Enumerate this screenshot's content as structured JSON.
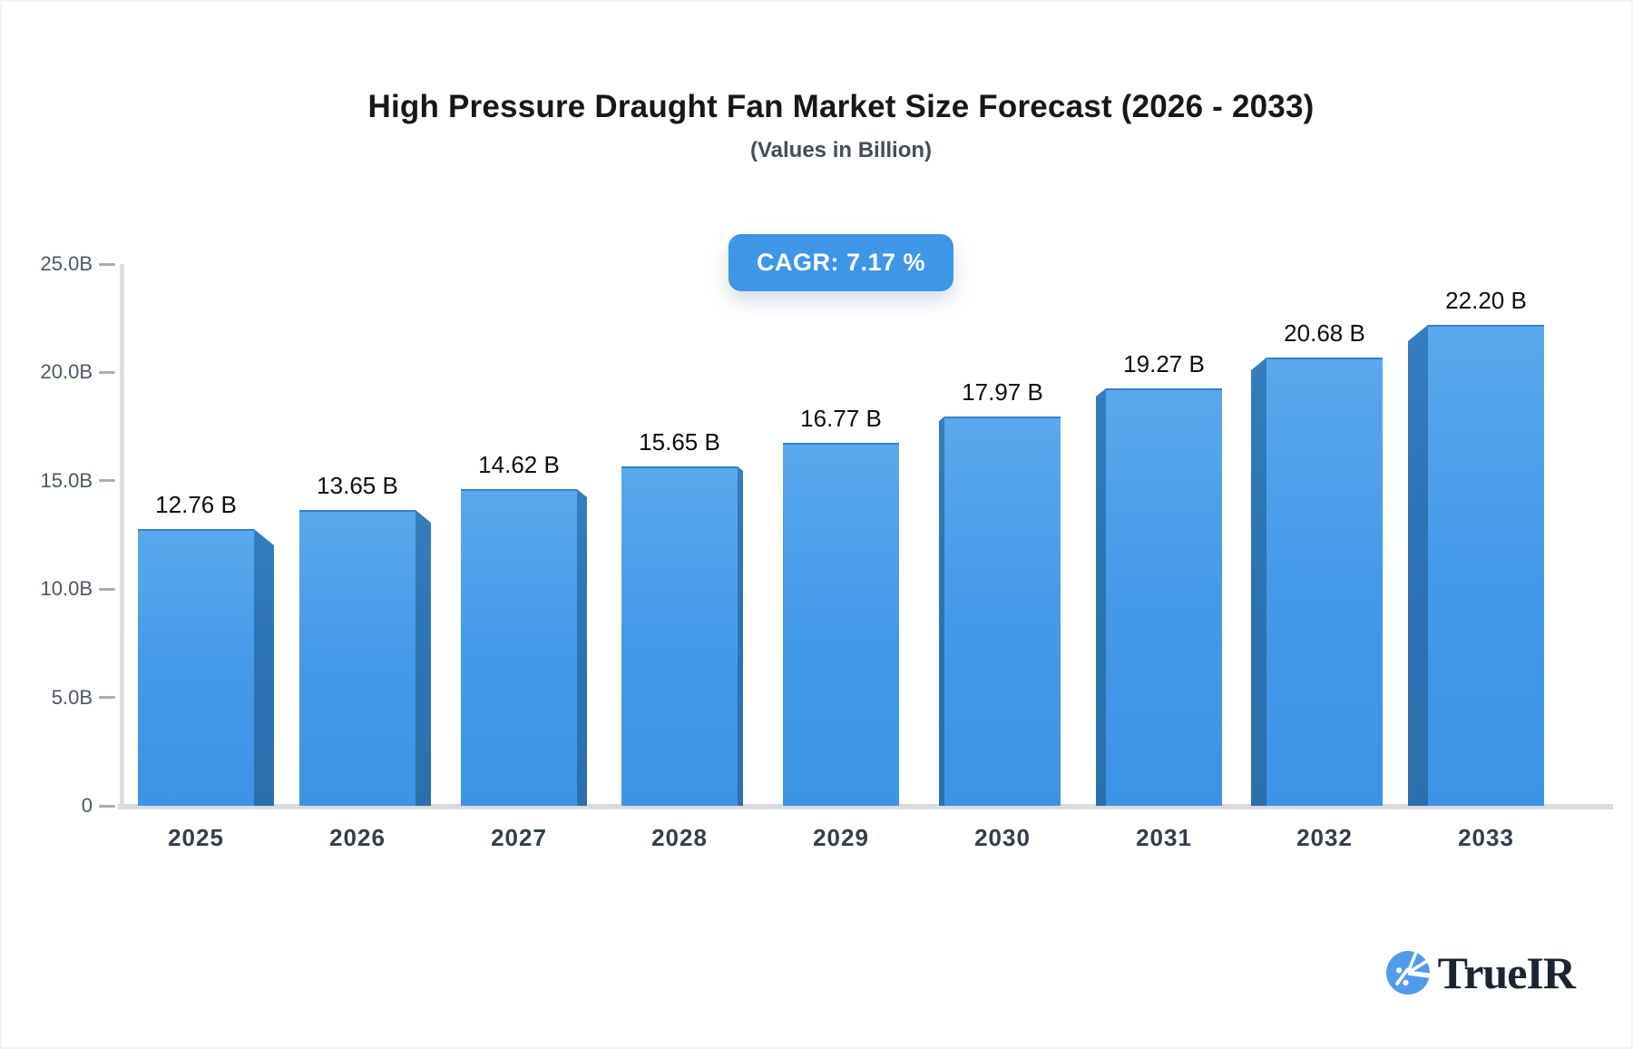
{
  "header": {
    "title": "High Pressure Draught Fan Market Size Forecast (2026 - 2033)",
    "subtitle": "(Values in Billion)"
  },
  "badge": {
    "label": "CAGR: 7.17 %",
    "background": "#3e96e8",
    "text_color": "#ffffff"
  },
  "chart_data": {
    "type": "bar",
    "title": "High Pressure Draught Fan Market Size Forecast (2026 - 2033)",
    "subtitle": "(Values in Billion)",
    "annotation": "CAGR: 7.17 %",
    "categories": [
      "2025",
      "2026",
      "2027",
      "2028",
      "2029",
      "2030",
      "2031",
      "2032",
      "2033"
    ],
    "values": [
      12.76,
      13.65,
      14.62,
      15.65,
      16.77,
      17.97,
      19.27,
      20.68,
      22.2
    ],
    "value_labels": [
      "12.76 B",
      "13.65 B",
      "14.62 B",
      "15.65 B",
      "16.77 B",
      "17.97 B",
      "19.27 B",
      "20.68 B",
      "22.20 B"
    ],
    "unit": "Billion",
    "xlabel": "",
    "ylabel": "",
    "ylim": [
      0,
      25
    ],
    "y_tick_values": [
      25,
      20,
      15,
      10,
      5,
      0
    ],
    "y_tick_labels": [
      "25.0B",
      "20.0B",
      "15.0B",
      "10.0B",
      "5.0B",
      "0"
    ],
    "grid": false,
    "legend": "none",
    "style": "3d-extruded-bars-center-perspective",
    "bar_color_top": "#5aa8ed",
    "bar_color_bottom": "#3d93e6",
    "bar_side_color": "#2d74b5"
  },
  "logo": {
    "text": "TrueIR",
    "icon": "pie-chart-percent-icon",
    "icon_color": "#4f9dea",
    "text_color": "#1a2433"
  }
}
